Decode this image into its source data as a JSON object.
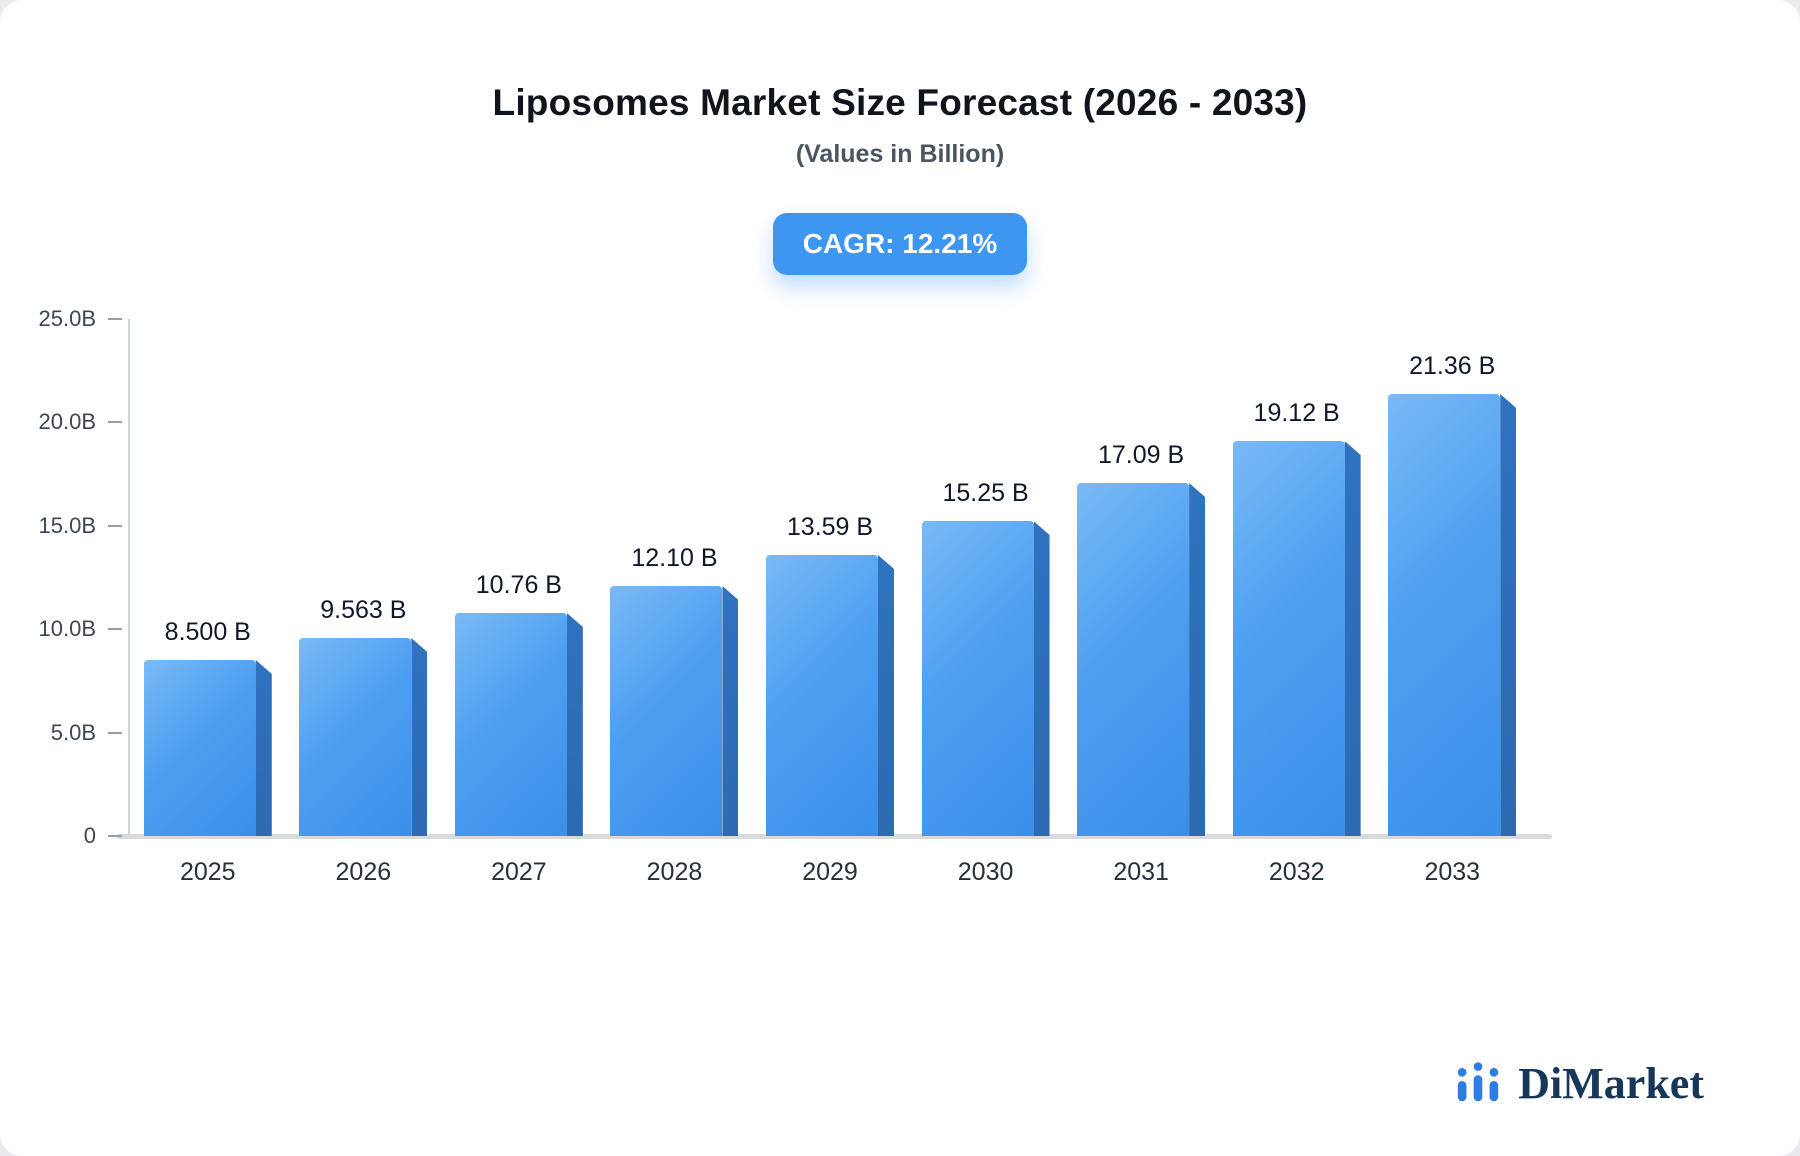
{
  "title": "Liposomes Market Size Forecast (2026 - 2033)",
  "subtitle": "(Values in Billion)",
  "cagr_badge": "CAGR: 12.21%",
  "brand": {
    "name": "DiMarket",
    "icon": "mini-bar-chart-icon",
    "icon_color": "#2e7de6",
    "text_color": "#17375a"
  },
  "chart_data": {
    "type": "bar",
    "title": "Liposomes Market Size Forecast (2026 - 2033)",
    "subtitle": "(Values in Billion)",
    "categories": [
      "2025",
      "2026",
      "2027",
      "2028",
      "2029",
      "2030",
      "2031",
      "2032",
      "2033"
    ],
    "values": [
      8.5,
      9.563,
      10.76,
      12.1,
      13.59,
      15.25,
      17.09,
      19.12,
      21.36
    ],
    "value_labels": [
      "8.500 B",
      "9.563 B",
      "10.76 B",
      "12.10 B",
      "13.59 B",
      "15.25 B",
      "17.09 B",
      "19.12 B",
      "21.36 B"
    ],
    "unit": "Billion USD",
    "cagr": "12.21%",
    "xlabel": "",
    "ylabel": "",
    "ylim": [
      0,
      25
    ],
    "y_ticks": [
      {
        "value": 0,
        "label": "0"
      },
      {
        "value": 5,
        "label": "5.0B"
      },
      {
        "value": 10,
        "label": "10.0B"
      },
      {
        "value": 15,
        "label": "15.0B"
      },
      {
        "value": 20,
        "label": "20.0B"
      },
      {
        "value": 25,
        "label": "25.0B"
      }
    ],
    "grid": false,
    "legend": "none",
    "bar_color_top": "#79baf6",
    "bar_color_bottom": "#3b8fe9",
    "bar_side_color": "#2d6ab2",
    "badge_color": "#3d96f0"
  }
}
